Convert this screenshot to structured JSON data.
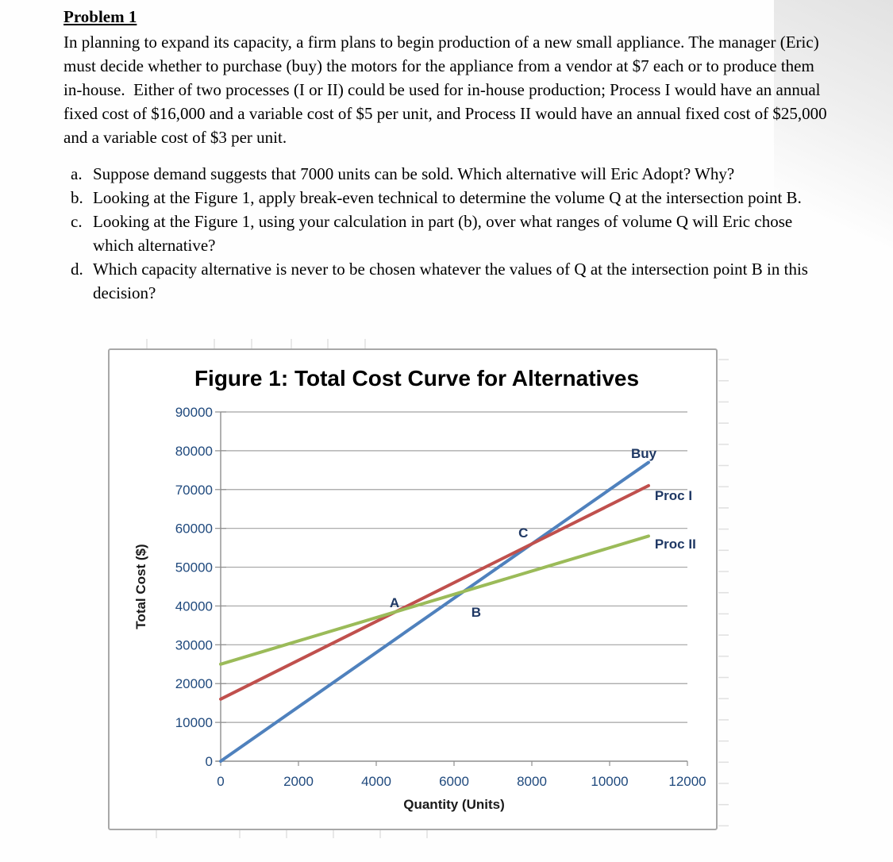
{
  "document": {
    "heading": "Problem 1",
    "paragraph": "In planning to expand its capacity, a firm plans to begin production of a new small appliance. The manager (Eric) must decide whether to purchase (buy) the motors for the appliance from a vendor at $7 each or to produce them in-house.  Either of two processes (I or II) could be used for in-house production; Process I would have an annual fixed cost of $16,000 and a variable cost of $5 per unit, and Process II would have an annual fixed cost of $25,000 and a variable cost of $3 per unit.",
    "questions": [
      {
        "marker": "a.",
        "text": "Suppose demand suggests that 7000 units can be sold. Which alternative will Eric Adopt? Why?"
      },
      {
        "marker": "b.",
        "text": "Looking at the Figure 1, apply break-even technical to determine the volume Q at the intersection point B."
      },
      {
        "marker": "c.",
        "text": "Looking at the Figure 1, using your calculation in part (b), over what ranges of volume Q will Eric chose which alternative?"
      },
      {
        "marker": "d.",
        "text": "Which capacity alternative is never to be chosen whatever the values of Q at the intersection point B in this decision?"
      }
    ]
  },
  "chart_data": {
    "type": "line",
    "title": "Figure 1: Total Cost Curve for Alternatives",
    "xlabel": "Quantity (Units)",
    "ylabel": "Total Cost ($)",
    "xlim": [
      0,
      12000
    ],
    "ylim": [
      0,
      90000
    ],
    "x_ticks": [
      0,
      2000,
      4000,
      6000,
      8000,
      10000,
      12000
    ],
    "y_ticks": [
      0,
      10000,
      20000,
      30000,
      40000,
      50000,
      60000,
      70000,
      80000,
      90000
    ],
    "grid": "horizontal-major",
    "legend_position": "labels-at-line-ends",
    "series": [
      {
        "name": "Buy",
        "color": "#4F81BD",
        "x": [
          0,
          11000
        ],
        "y": [
          0,
          77000
        ]
      },
      {
        "name": "Proc I",
        "color": "#C0504D",
        "x": [
          0,
          11000
        ],
        "y": [
          16000,
          71000
        ]
      },
      {
        "name": "Proc II",
        "color": "#9BBB59",
        "x": [
          0,
          11000
        ],
        "y": [
          25000,
          58000
        ]
      }
    ],
    "line_labels": [
      {
        "text": "Buy",
        "x": 10550,
        "y": 78100,
        "anchor": "start"
      },
      {
        "text": "Proc I",
        "x": 11160,
        "y": 67300,
        "anchor": "start"
      },
      {
        "text": "Proc II",
        "x": 11160,
        "y": 54800,
        "anchor": "start"
      }
    ],
    "point_labels": [
      {
        "text": "A",
        "x": 4470,
        "y": 39700
      },
      {
        "text": "B",
        "x": 6570,
        "y": 37200
      },
      {
        "text": "C",
        "x": 7780,
        "y": 57700
      }
    ],
    "colors": {
      "title": "#000000",
      "axis_title": "#1a1a1a",
      "tick_label": "#1F497D",
      "annotation": "#1F3864",
      "gridline": "#a3a3a3",
      "axis": "#8f8f8f",
      "chart_border": "#a8a8a8",
      "worksheet_mark": "#e0e0e0"
    }
  }
}
